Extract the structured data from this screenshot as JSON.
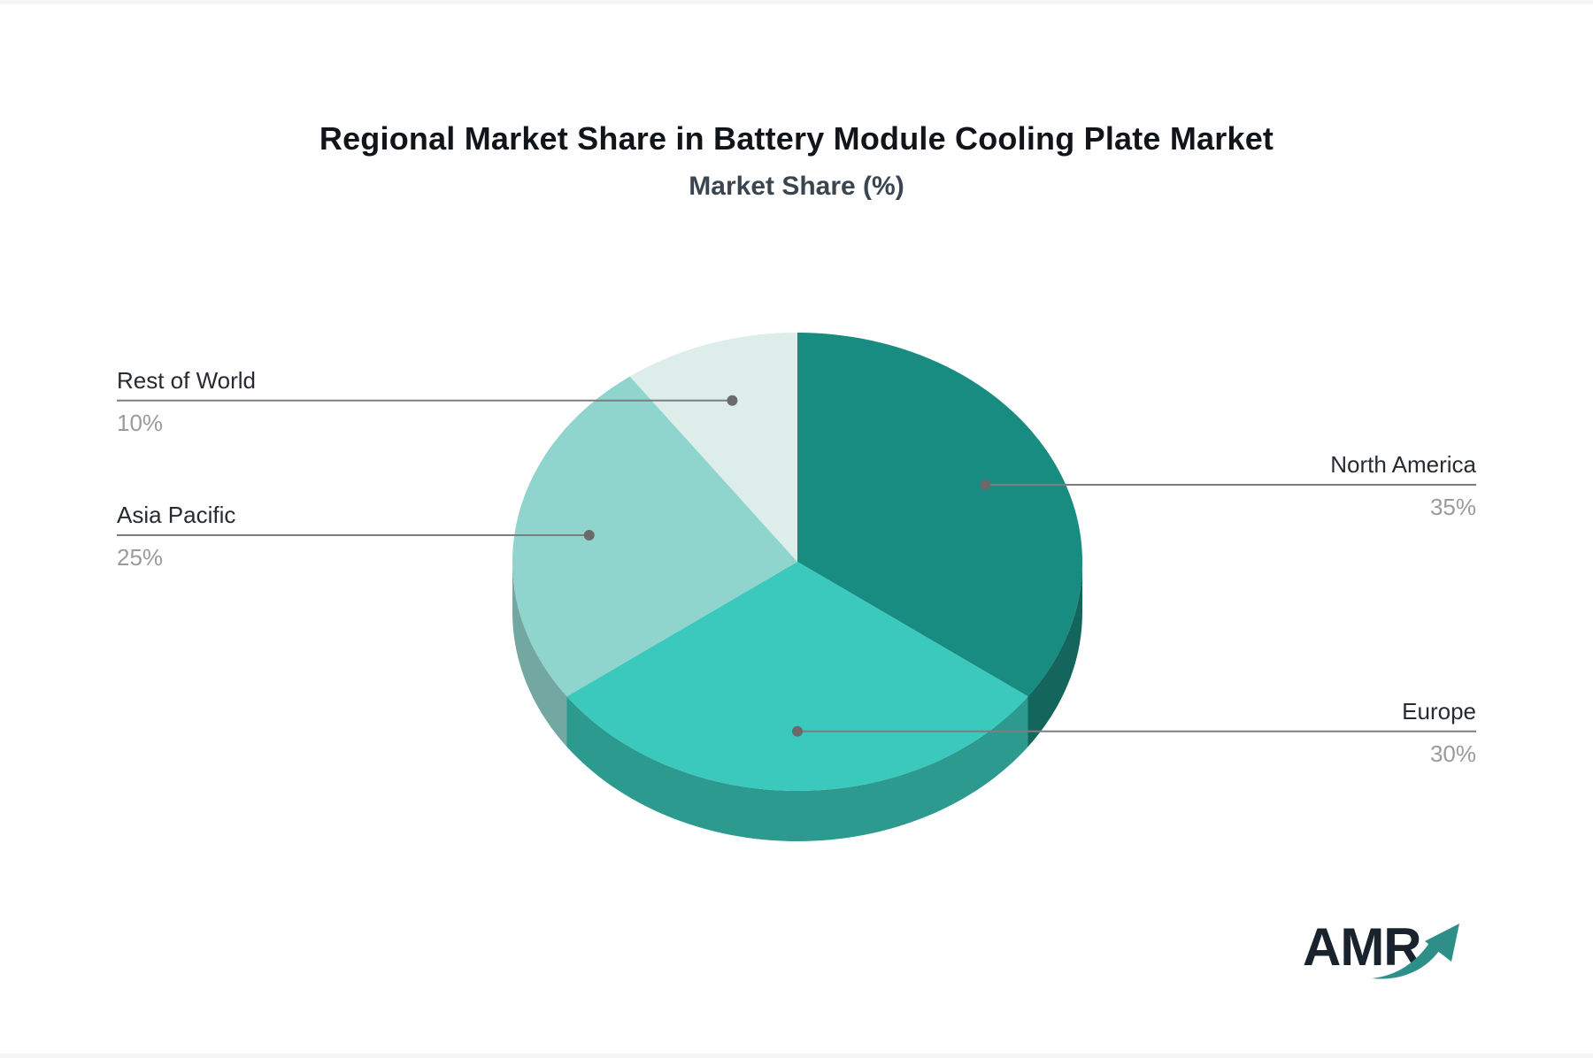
{
  "chart_data": {
    "type": "pie",
    "style": "3d-pie",
    "title": "Regional Market Share in Battery Module Cooling Plate Market",
    "subtitle": "Market Share (%)",
    "unit": "%",
    "direction": "clockwise",
    "start_angle_deg": 0,
    "slices": [
      {
        "label": "North America",
        "value": 35,
        "pct_label": "35%",
        "color": "#188c80",
        "side_color": "#14665c",
        "label_side": "right"
      },
      {
        "label": "Europe",
        "value": 30,
        "pct_label": "30%",
        "color": "#3cc9bd",
        "side_color": "#2d9a8f",
        "label_side": "right"
      },
      {
        "label": "Asia Pacific",
        "value": 25,
        "pct_label": "25%",
        "color": "#90d5cd",
        "side_color": "#73a7a1",
        "label_side": "left"
      },
      {
        "label": "Rest of World",
        "value": 10,
        "pct_label": "10%",
        "color": "#ddedea",
        "side_color": "#b9d0cc",
        "label_side": "left"
      }
    ],
    "leader_line_color": "#7d7d7d",
    "leader_dot_color": "#6a6a6a",
    "label_text_color": "#262b31",
    "pct_text_color": "#9b9b9b"
  },
  "logo": {
    "text": "AMR",
    "arrow_color": "#2e8f89"
  }
}
